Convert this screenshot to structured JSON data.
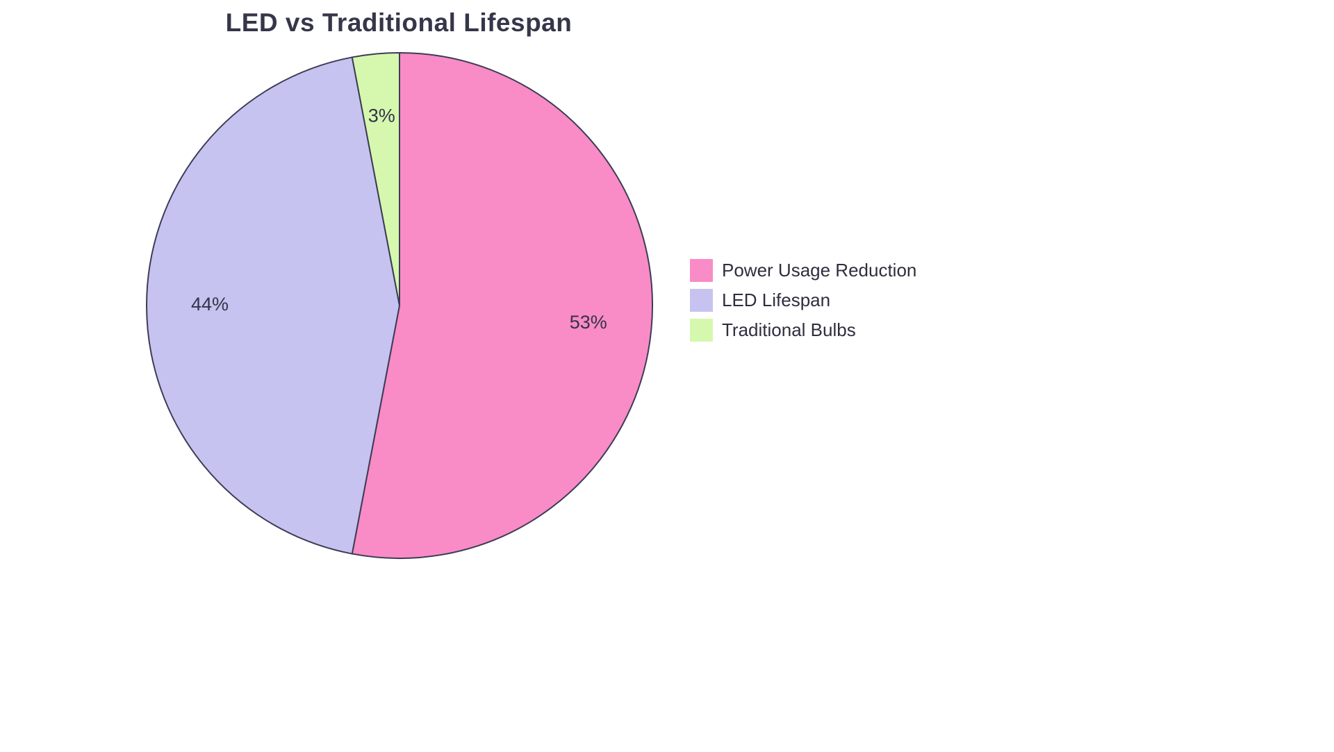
{
  "chart_data": {
    "type": "pie",
    "title": "LED vs Traditional Lifespan",
    "legend_position": "right",
    "start_angle_deg": 0,
    "direction": "clockwise",
    "background": "#FFFFFF",
    "stroke_color": "#3C3C55",
    "label_color": "#33334A",
    "slices": [
      {
        "label": "Power Usage Reduction",
        "value": 53,
        "pct_label": "53%",
        "color": "#F98BC6"
      },
      {
        "label": "LED Lifespan",
        "value": 44,
        "pct_label": "44%",
        "color": "#C6C3F0"
      },
      {
        "label": "Traditional Bulbs",
        "value": 3,
        "pct_label": "3%",
        "color": "#D6F8AE"
      }
    ]
  }
}
